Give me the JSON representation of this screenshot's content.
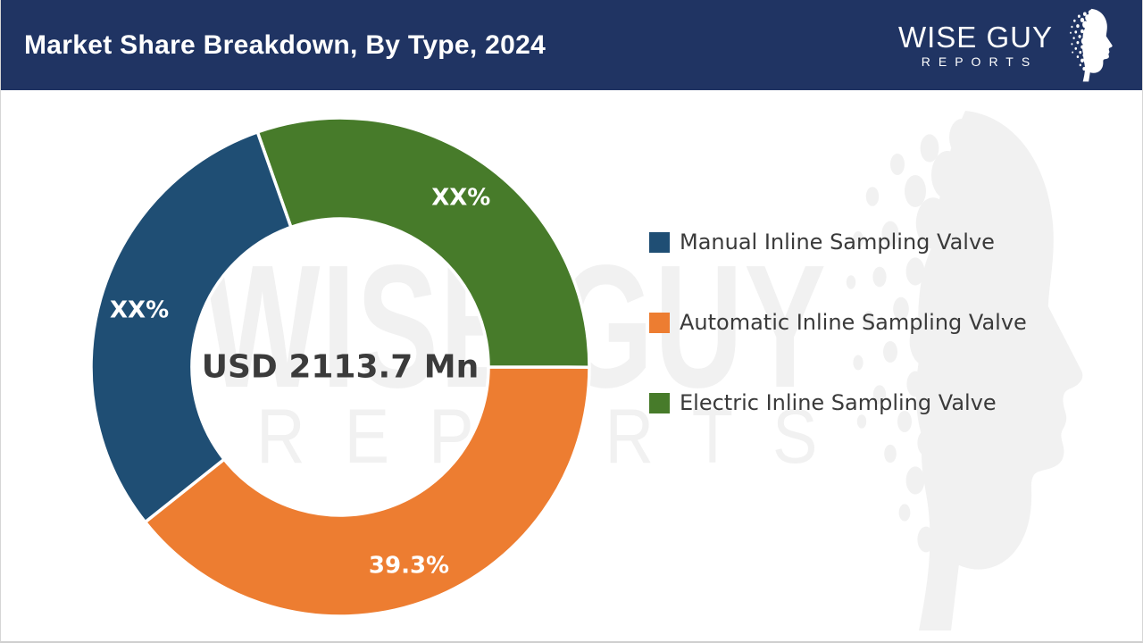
{
  "header": {
    "title": "Market Share Breakdown, By Type, 2024",
    "logo": {
      "line1": "WISE GUY",
      "line2": "REPORTS"
    }
  },
  "watermark": {
    "line1": "WISE GUY",
    "line2": "REPORTS"
  },
  "chart_data": {
    "type": "pie",
    "subtype": "donut",
    "title": "Market Share Breakdown, By Type, 2024",
    "center_label": "USD 2113.7 Mn",
    "start_angle_deg": -19.4,
    "clockwise": true,
    "draw_order": [
      2,
      1,
      0
    ],
    "legend_position": "right",
    "segments": [
      {
        "label": "Manual Inline Sampling Valve",
        "display_value": "XX%",
        "percent": 30.3,
        "color": "#1F4E74"
      },
      {
        "label": "Automatic Inline Sampling Valve",
        "display_value": "39.3%",
        "percent": 39.3,
        "color": "#ED7D31"
      },
      {
        "label": "Electric Inline Sampling Valve",
        "display_value": "XX%",
        "percent": 30.4,
        "color": "#477B2A"
      }
    ]
  },
  "colors": {
    "header_bg": "#203463",
    "center_text": "#3B3B3B",
    "legend_text": "#3A3A3A",
    "segment_label_text": "#FFFFFF",
    "separator": "#FFFFFF",
    "watermark": "#F1F1F1",
    "border": "#CFCFCF"
  }
}
